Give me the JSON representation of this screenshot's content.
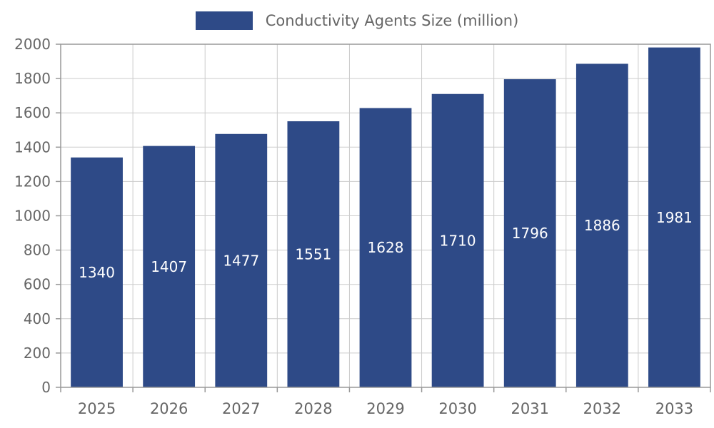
{
  "chart_data": {
    "type": "bar",
    "title": "Conductivity Agents Size (million)",
    "categories": [
      "2025",
      "2026",
      "2027",
      "2028",
      "2029",
      "2030",
      "2031",
      "2032",
      "2033"
    ],
    "values": [
      1340,
      1407,
      1477,
      1551,
      1628,
      1710,
      1796,
      1886,
      1981
    ],
    "xlabel": "",
    "ylabel": "",
    "ylim": [
      0,
      2000
    ],
    "ytick_step": 200,
    "grid": true,
    "legend_position": "top-center",
    "colors": {
      "bar": "#2e4a87",
      "bar_value_label": "#ffffff",
      "axis_text": "#666666",
      "gridline": "#cccccc",
      "frame": "#999999"
    }
  }
}
